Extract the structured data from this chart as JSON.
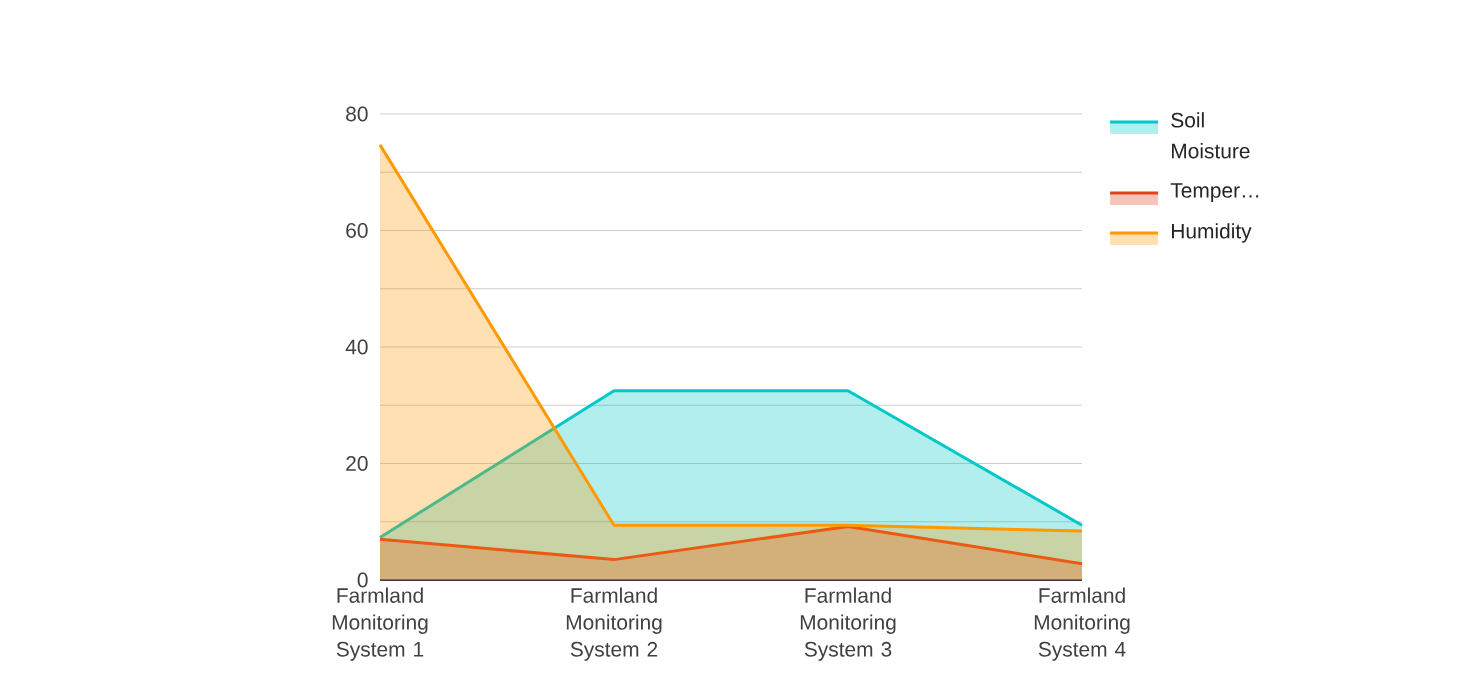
{
  "chart_data": {
    "type": "area",
    "categories": [
      "Farmland Monitoring System 1",
      "Farmland Monitoring System 2",
      "Farmland Monitoring System 3",
      "Farmland Monitoring System 4"
    ],
    "series": [
      {
        "name": "Soil Moisture",
        "color": "#00c8c8",
        "values": [
          7.3,
          32.5,
          32.5,
          9.4
        ]
      },
      {
        "name": "Temper…",
        "color": "#e0401c",
        "values": [
          7.0,
          3.5,
          9.2,
          2.8
        ]
      },
      {
        "name": "Humidity",
        "color": "#ff9900",
        "values": [
          74.7,
          9.4,
          9.4,
          8.4
        ]
      }
    ],
    "ylim": [
      0,
      80
    ],
    "yticks": [
      0,
      {
        "value": 10,
        "label": null
      },
      20,
      {
        "value": 30,
        "label": null
      },
      40,
      {
        "value": 50,
        "label": null
      },
      60,
      {
        "value": 70,
        "label": null
      },
      80
    ],
    "grid": "y",
    "legend": "top right"
  }
}
